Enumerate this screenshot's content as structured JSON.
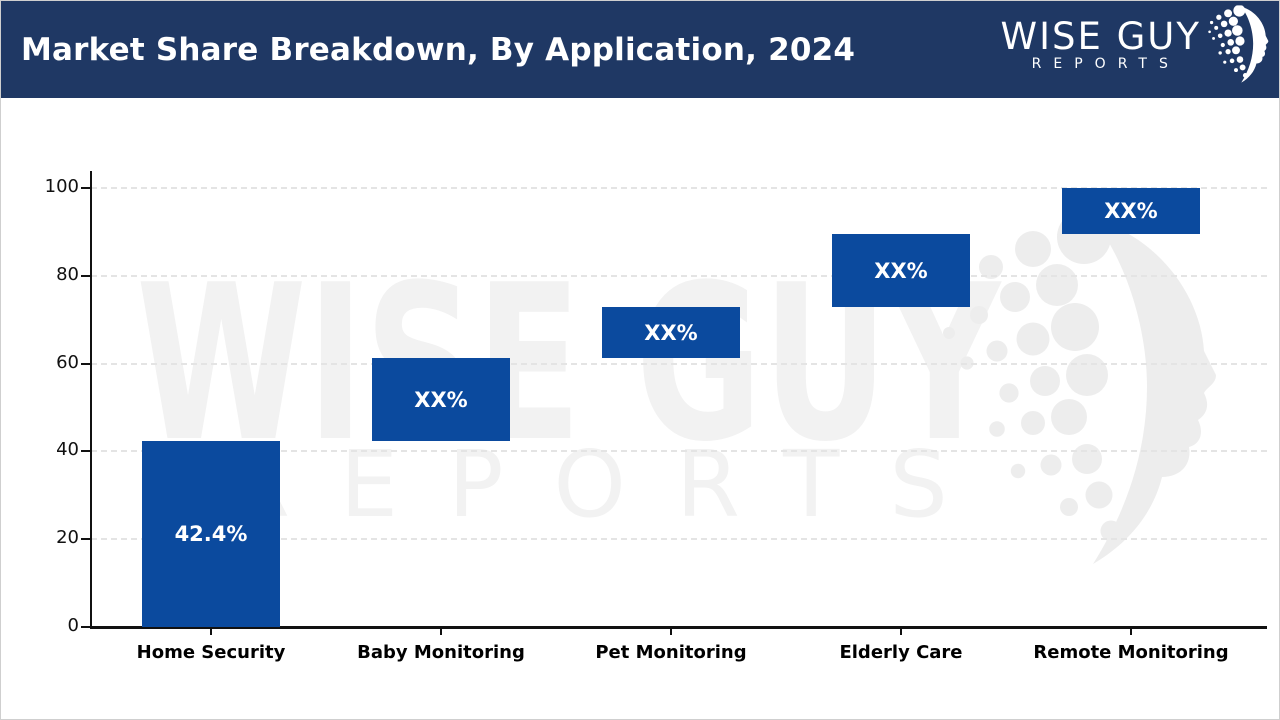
{
  "header": {
    "title": "Market Share Breakdown, By Application, 2024",
    "brand_line1": "WISE GUY",
    "brand_line2": "REPORTS"
  },
  "watermark": {
    "line1": "WISE GUY",
    "line2": "REPORTS"
  },
  "chart_data": {
    "type": "bar",
    "subtype": "waterfall",
    "title": "Market Share Breakdown, By Application, 2024",
    "categories": [
      "Home Security",
      "Baby Monitoring",
      "Pet Monitoring",
      "Elderly Care",
      "Remote Monitoring"
    ],
    "segments": [
      {
        "category": "Home Security",
        "start": 0,
        "end": 42.4,
        "label": "42.4%"
      },
      {
        "category": "Baby Monitoring",
        "start": 42.4,
        "end": 61.2,
        "label": "XX%"
      },
      {
        "category": "Pet Monitoring",
        "start": 61.2,
        "end": 72.8,
        "label": "XX%"
      },
      {
        "category": "Elderly Care",
        "start": 72.8,
        "end": 89.5,
        "label": "XX%"
      },
      {
        "category": "Remote Monitoring",
        "start": 89.5,
        "end": 100,
        "label": "XX%"
      }
    ],
    "yticks": [
      0,
      20,
      40,
      60,
      80,
      100
    ],
    "ylim": [
      0,
      104
    ],
    "xlabel": "",
    "ylabel": "",
    "grid": "horizontal-dashed",
    "legend": "none",
    "bar_color": "#0b4a9e",
    "value_label_color": "#ffffff"
  },
  "colors": {
    "header_bg": "#1f3864",
    "bar": "#0b4a9e",
    "axis": "#111111",
    "gridline": "#e4e4e4",
    "watermark": "#f2f2f2"
  }
}
